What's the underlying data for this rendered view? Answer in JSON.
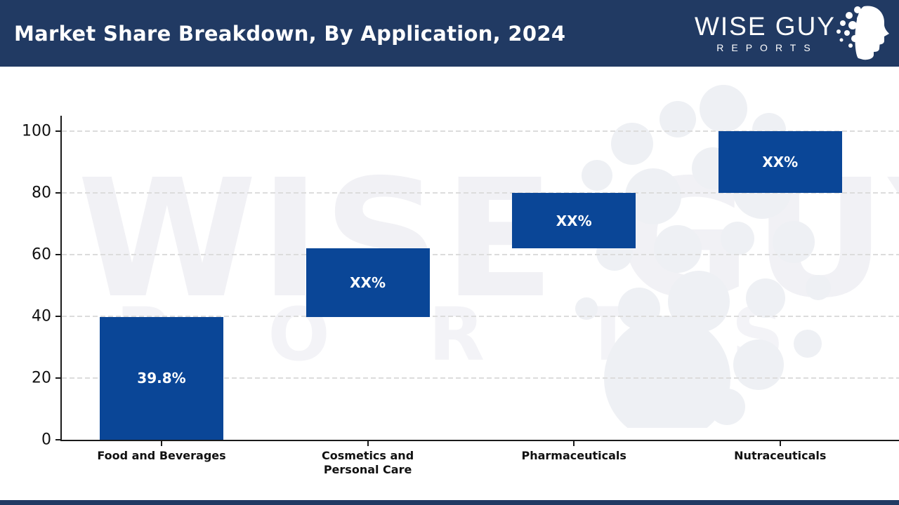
{
  "header": {
    "title": "Market Share Breakdown, By Application, 2024",
    "logo": {
      "line1": "WISE GUY",
      "line2": "REPORTS"
    }
  },
  "watermark": {
    "line1": "WISE GUY",
    "line2": "P O R T S"
  },
  "colors": {
    "header_bg": "#213a63",
    "bar_blue": "#0a4697",
    "grid": "#dcdcdc",
    "axis": "#1a1a1a",
    "bar_label": "#ffffff",
    "watermark": "#f1f1f5"
  },
  "chart_data": {
    "type": "bar",
    "subtype": "waterfall",
    "title": "Market Share Breakdown, By Application, 2024",
    "xlabel": "",
    "ylabel": "",
    "ylim": [
      0,
      105
    ],
    "yticks": [
      0,
      20,
      40,
      60,
      80,
      100
    ],
    "grid": "horizontal dashed, drawn under bars",
    "legend": "none",
    "categories": [
      "Food and Beverages",
      "Cosmetics and\nPersonal Care",
      "Pharmaceuticals",
      "Nutraceuticals"
    ],
    "bars": [
      {
        "category": "Food and Beverages",
        "start": 0,
        "end": 39.8,
        "value": 39.8,
        "label": "39.8%"
      },
      {
        "category": "Cosmetics and Personal Care",
        "start": 39.8,
        "end": 62,
        "value": 22.2,
        "label": "XX%"
      },
      {
        "category": "Pharmaceuticals",
        "start": 62,
        "end": 80,
        "value": 18.0,
        "label": "XX%"
      },
      {
        "category": "Nutraceuticals",
        "start": 80,
        "end": 100,
        "value": 20.0,
        "label": "XX%"
      }
    ]
  }
}
